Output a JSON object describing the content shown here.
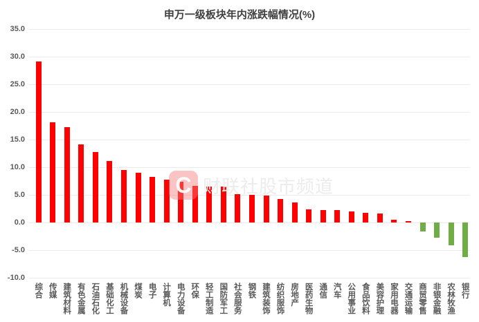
{
  "title": "申万一级板块年内涨跌幅情况(%)",
  "watermark": {
    "logo_glyph": "C",
    "text": "财联社股市频道"
  },
  "colors": {
    "positive_bar": "#fe0000",
    "negative_bar": "#70ad47",
    "gridline": "#ebebeb",
    "axis_label": "#595959",
    "title": "#3f3f3f",
    "watermark_text": "#ececec",
    "watermark_logo_bg": "rgba(247,125,125,0.45)"
  },
  "chart_data": {
    "type": "bar",
    "title": "申万一级板块年内涨跌幅情况(%)",
    "xlabel": "",
    "ylabel": "",
    "ylim": [
      -10,
      35
    ],
    "yticks": [
      35,
      30,
      25,
      20,
      15,
      10,
      5,
      0,
      -5,
      -10
    ],
    "grid": true,
    "legend": false,
    "categories": [
      "综合",
      "传媒",
      "建筑材料",
      "有色金属",
      "石油石化",
      "基础化工",
      "机械设备",
      "煤炭",
      "电子",
      "计算机",
      "电力设备",
      "环保",
      "轻工制造",
      "国防军工",
      "社会服务",
      "钢铁",
      "建筑装饰",
      "纺织服饰",
      "房地产",
      "医药生物",
      "通信",
      "汽车",
      "公用事业",
      "食品饮料",
      "美容护理",
      "家用电器",
      "交通运输",
      "商贸零售",
      "非银金融",
      "农林牧渔",
      "银行"
    ],
    "values": [
      29.1,
      18.1,
      17.3,
      14.1,
      12.8,
      11.1,
      9.5,
      9.0,
      8.3,
      7.8,
      7.4,
      6.6,
      6.5,
      6.5,
      5.1,
      5.0,
      4.9,
      4.3,
      3.6,
      2.4,
      2.2,
      2.2,
      2.0,
      1.7,
      1.6,
      0.5,
      0.2,
      -1.6,
      -2.7,
      -4.1,
      -6.3
    ]
  }
}
